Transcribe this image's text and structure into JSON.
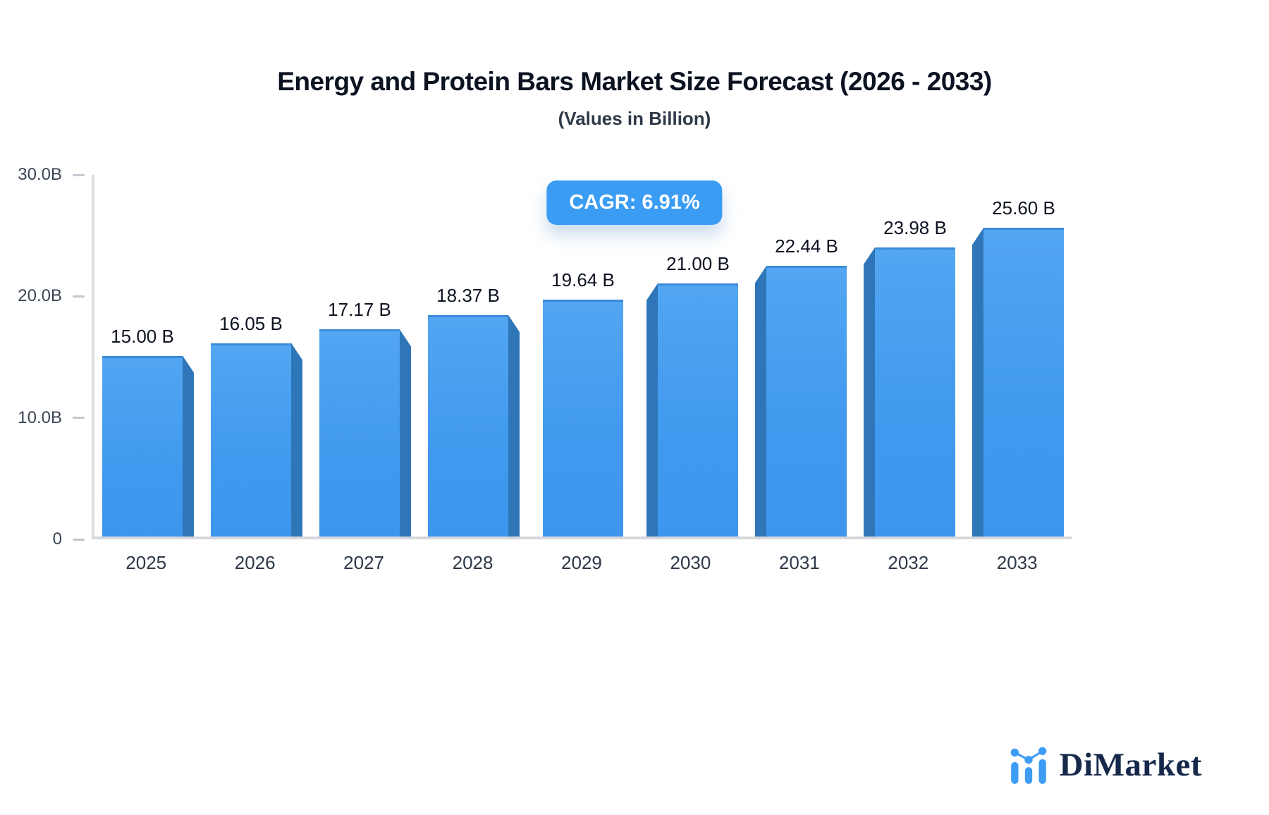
{
  "title": "Energy and Protein Bars Market Size Forecast (2026 - 2033)",
  "subtitle": "(Values in Billion)",
  "badge": {
    "label": "CAGR: 6.91%"
  },
  "chart_data": {
    "type": "bar",
    "title": "Energy and Protein Bars Market Size Forecast (2026 - 2033)",
    "subtitle": "(Values in Billion)",
    "cagr_label": "CAGR: 6.91%",
    "categories": [
      "2025",
      "2026",
      "2027",
      "2028",
      "2029",
      "2030",
      "2031",
      "2032",
      "2033"
    ],
    "values": [
      15.0,
      16.05,
      17.17,
      18.37,
      19.64,
      21.0,
      22.44,
      23.98,
      25.6
    ],
    "value_labels": [
      "15.00 B",
      "16.05 B",
      "17.17 B",
      "18.37 B",
      "19.64 B",
      "21.00 B",
      "22.44 B",
      "23.98 B",
      "25.60 B"
    ],
    "xlabel": "",
    "ylabel": "",
    "ylim": [
      0,
      30
    ],
    "ytick_labels": [
      "30.0B",
      "20.0B",
      "10.0B",
      "0"
    ],
    "grid": false,
    "legend": false,
    "bar_style": "3d-bevel",
    "bar_color": "#429AEF",
    "bar_side_color": "#2E76B7",
    "bar_top_edge_color": "#3C8AD9",
    "accent_color": "#3B9CF4",
    "axis_line_color": "#D5D7DC"
  },
  "logo": {
    "text": "DiMarket",
    "icon": "bar-line-chart-icon",
    "color": "#16294B",
    "icon_color": "#3D9CF5"
  }
}
